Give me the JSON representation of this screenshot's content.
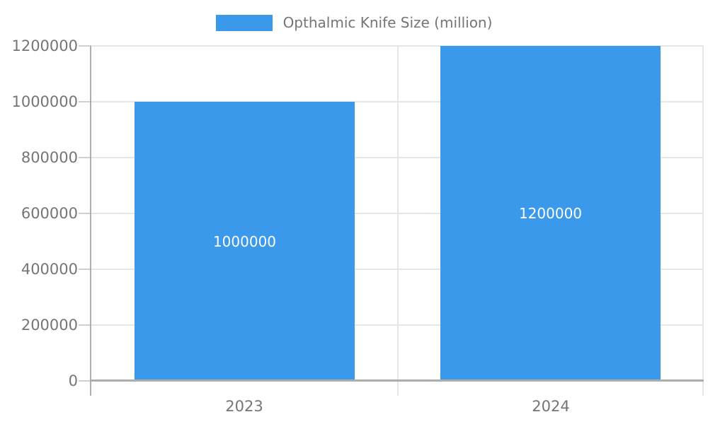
{
  "legend": {
    "label": "Opthalmic Knife Size (million)"
  },
  "colors": {
    "bar": "#3B99EC",
    "axis_line": "#ADADAD",
    "gridline": "#E6E6E6",
    "tick_mark": "#CFCFCF",
    "axis_text": "#757575",
    "bar_label_text": "#FFFFFF",
    "background": "#FFFFFF"
  },
  "chart_data": {
    "type": "bar",
    "title": "",
    "xlabel": "",
    "ylabel": "",
    "categories": [
      "2023",
      "2024"
    ],
    "series": [
      {
        "name": "Opthalmic Knife Size (million)",
        "values": [
          1000000,
          1200000
        ],
        "value_labels": [
          "1000000",
          "1200000"
        ]
      }
    ],
    "yticks": [
      0,
      200000,
      400000,
      600000,
      800000,
      1000000,
      1200000
    ],
    "ytick_labels": [
      "0",
      "200000",
      "400000",
      "600000",
      "800000",
      "1000000",
      "1200000"
    ],
    "ylim": [
      0,
      1200000
    ],
    "grid": true,
    "legend_position": "top-center"
  }
}
